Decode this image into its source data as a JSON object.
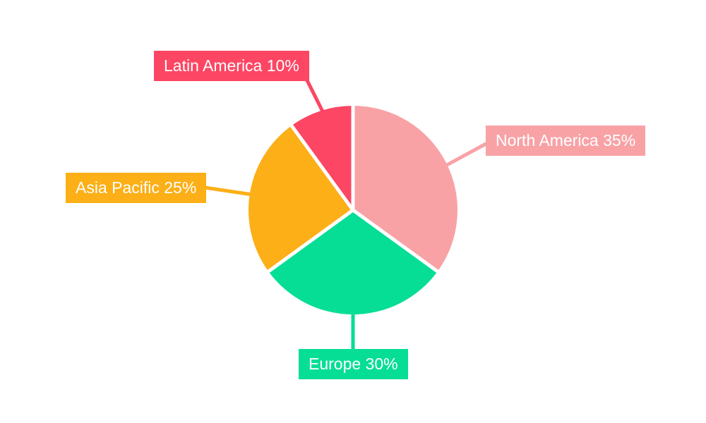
{
  "figure": {
    "background": "#ffffff",
    "label_text_color": "#ffffff"
  },
  "chart_data": {
    "type": "pie",
    "categories": [
      "North America",
      "Europe",
      "Asia Pacific",
      "Latin America"
    ],
    "values": [
      35,
      30,
      25,
      10
    ],
    "unit": "%",
    "colors": [
      "#F8A2A6",
      "#06DE96",
      "#FCAF17",
      "#FC4663"
    ],
    "labels": [
      "North America 35%",
      "Europe 30%",
      "Asia Pacific 25%",
      "Latin America 10%"
    ],
    "start_angle": "12 o'clock",
    "direction": "clockwise",
    "legend_position": "none",
    "labels_style": "external callout boxes with leader lines",
    "slice_separator_color": "#ffffff"
  }
}
